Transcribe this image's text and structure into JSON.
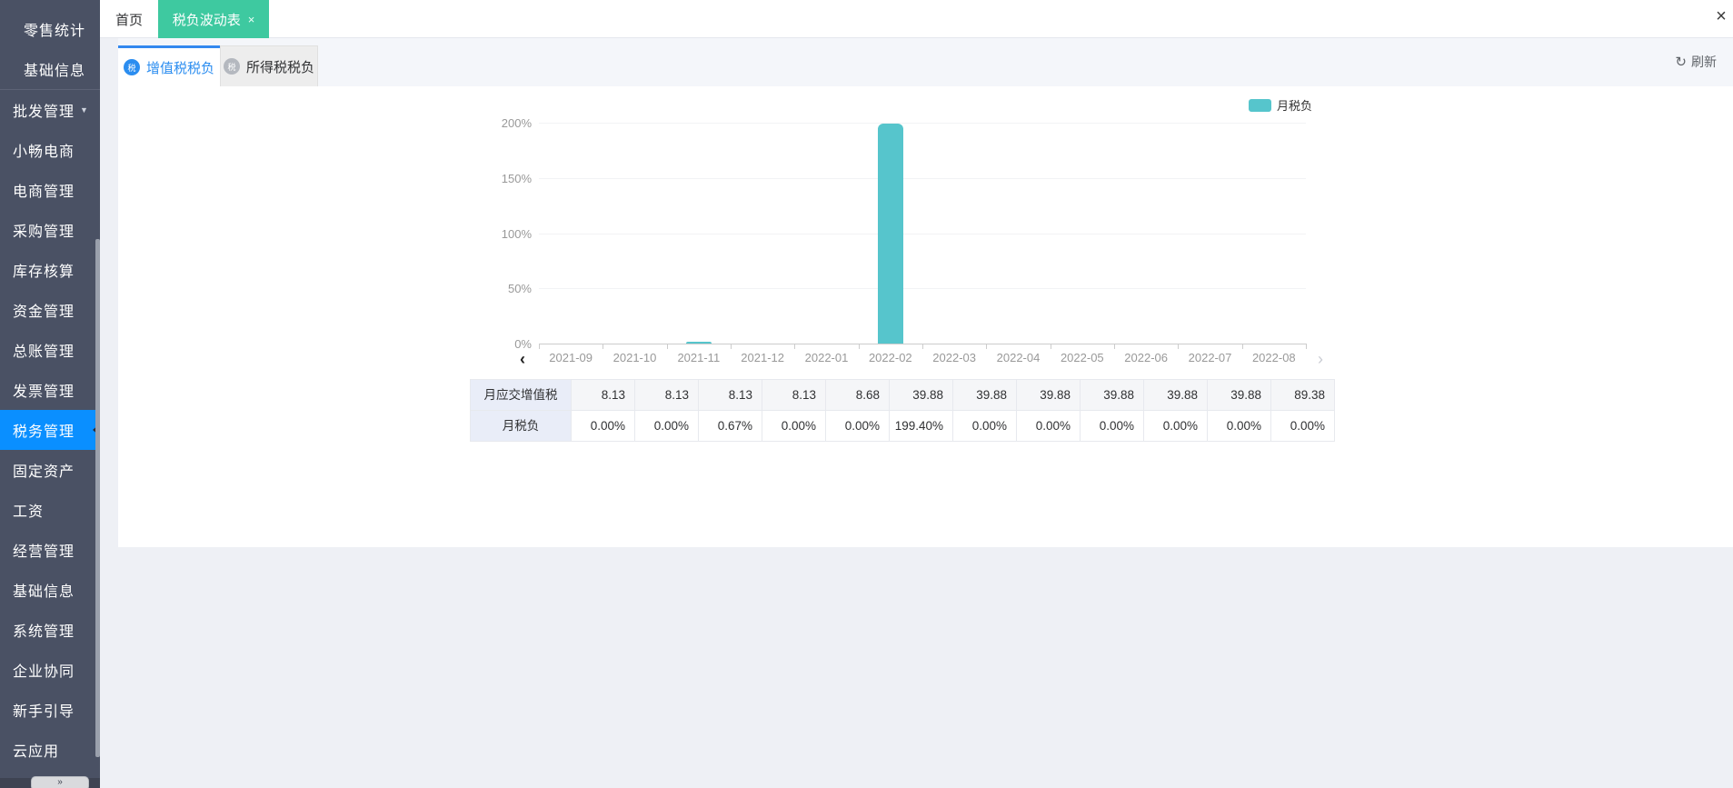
{
  "window": {
    "close": "×"
  },
  "icons": {
    "close": "×",
    "tab_close": "×",
    "refresh": "↻",
    "caret_down": "▼",
    "prev": "‹",
    "next": "›",
    "collapse": "»",
    "tab_badge_char": "税"
  },
  "colors": {
    "sidebar_bg": "#4a5164",
    "sidebar_active": "#0a8fff",
    "top_tab_green": "#3ec9a0",
    "panel_tab_blue": "#2b8df0",
    "bar_teal": "#56c5cc",
    "page_bg": "#eef0f5",
    "row_header_bg": "#e9edf8"
  },
  "top_tabs": [
    {
      "label": "首页",
      "active": false,
      "closable": false
    },
    {
      "label": "税负波动表",
      "active": true,
      "closable": true
    }
  ],
  "sidebar": {
    "top_items": [
      {
        "label": "零售统计"
      },
      {
        "label": "基础信息"
      }
    ],
    "items": [
      {
        "label": "批发管理",
        "caret": true
      },
      {
        "label": "小畅电商"
      },
      {
        "label": "电商管理"
      },
      {
        "label": "采购管理"
      },
      {
        "label": "库存核算"
      },
      {
        "label": "资金管理"
      },
      {
        "label": "总账管理"
      },
      {
        "label": "发票管理"
      },
      {
        "label": "税务管理",
        "active": true
      },
      {
        "label": "固定资产"
      },
      {
        "label": "工资"
      },
      {
        "label": "经营管理"
      },
      {
        "label": "基础信息"
      },
      {
        "label": "系统管理"
      },
      {
        "label": "企业协同"
      },
      {
        "label": "新手引导"
      },
      {
        "label": "云应用"
      }
    ]
  },
  "panel_tabs": [
    {
      "label": "增值税税负",
      "active": true
    },
    {
      "label": "所得税税负",
      "active": false
    }
  ],
  "refresh": {
    "label": "刷新"
  },
  "chart_data": {
    "type": "bar",
    "title": "",
    "categories": [
      "2021-09",
      "2021-10",
      "2021-11",
      "2021-12",
      "2022-01",
      "2022-02",
      "2022-03",
      "2022-04",
      "2022-05",
      "2022-06",
      "2022-07",
      "2022-08"
    ],
    "series": [
      {
        "name": "月税负",
        "values": [
          0.0,
          0.0,
          0.67,
          0.0,
          0.0,
          199.4,
          0.0,
          0.0,
          0.0,
          0.0,
          0.0,
          0.0
        ]
      }
    ],
    "xlabel": "",
    "ylabel": "",
    "ylim": [
      0,
      200
    ],
    "ytick_values": [
      0,
      50,
      100,
      150,
      200
    ],
    "yticks": [
      "0%",
      "50%",
      "100%",
      "150%",
      "200%"
    ],
    "grid": true,
    "legend": [
      {
        "label": "月税负",
        "color": "#56c5cc"
      }
    ],
    "legend_position": "top-right",
    "bar_color": "#56c5cc"
  },
  "table": {
    "rows": [
      {
        "header": "月应交增值税",
        "values": [
          "8.13",
          "8.13",
          "8.13",
          "8.13",
          "8.68",
          "39.88",
          "39.88",
          "39.88",
          "39.88",
          "39.88",
          "39.88",
          "89.38"
        ]
      },
      {
        "header": "月税负",
        "values": [
          "0.00%",
          "0.00%",
          "0.67%",
          "0.00%",
          "0.00%",
          "199.40%",
          "0.00%",
          "0.00%",
          "0.00%",
          "0.00%",
          "0.00%",
          "0.00%"
        ]
      }
    ]
  }
}
